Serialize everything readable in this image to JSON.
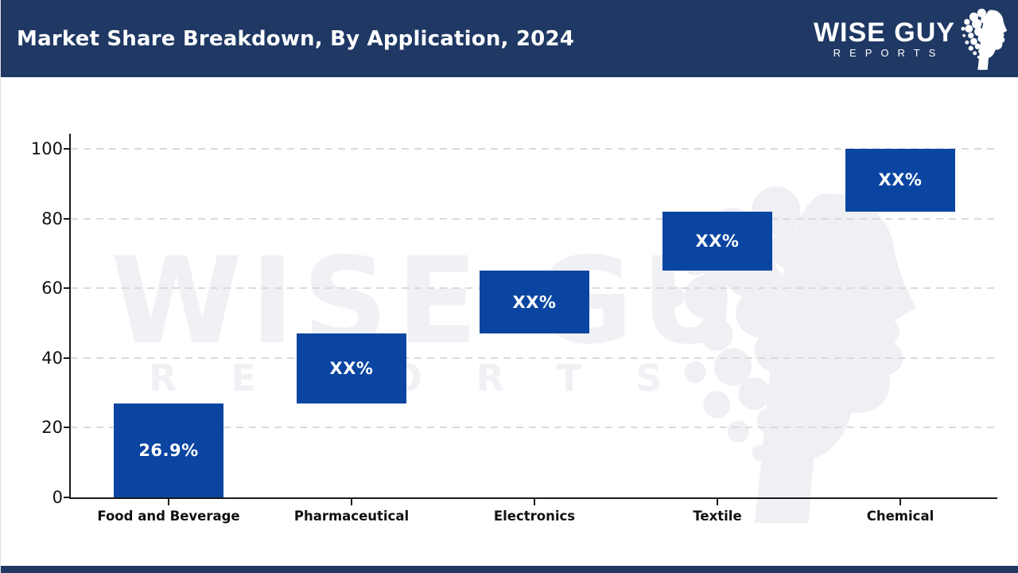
{
  "header": {
    "title": "Market Share Breakdown, By Application, 2024",
    "logo": {
      "wordmark": "WISE GUY",
      "subtext": "REPORTS"
    }
  },
  "watermark": {
    "wordmark": "WISE GUY",
    "subtext": "REPORTS"
  },
  "theme": {
    "header_bg": "#1f3864",
    "footer_bg": "#1f3864",
    "bar_color": "#0a45a1",
    "bar_label_color": "#ffffff",
    "axis_color": "#1a1a1a",
    "grid_color": "#dadada",
    "text_color": "#111111",
    "watermark_color": "#f0f1f4"
  },
  "chart_data": {
    "type": "bar",
    "subtype": "floating-waterfall",
    "title": "Market Share Breakdown, By Application, 2024",
    "categories": [
      "Food and Beverage",
      "Pharmaceutical",
      "Electronics",
      "Textile",
      "Chemical"
    ],
    "series": [
      {
        "name": "Market share (%)",
        "segments": [
          {
            "category": "Food and Beverage",
            "start": 0,
            "end": 26.9,
            "label": "26.9%"
          },
          {
            "category": "Pharmaceutical",
            "start": 26.9,
            "end": 47,
            "label": "XX%"
          },
          {
            "category": "Electronics",
            "start": 47,
            "end": 65,
            "label": "XX%"
          },
          {
            "category": "Textile",
            "start": 65,
            "end": 82,
            "label": "XX%"
          },
          {
            "category": "Chemical",
            "start": 82,
            "end": 100,
            "label": "XX%"
          }
        ]
      }
    ],
    "xlabel": "",
    "ylabel": "",
    "ylim": [
      0,
      104
    ],
    "yticks": [
      0,
      20,
      40,
      60,
      80,
      100
    ],
    "grid": "horizontal-dashed",
    "legend": "none"
  }
}
